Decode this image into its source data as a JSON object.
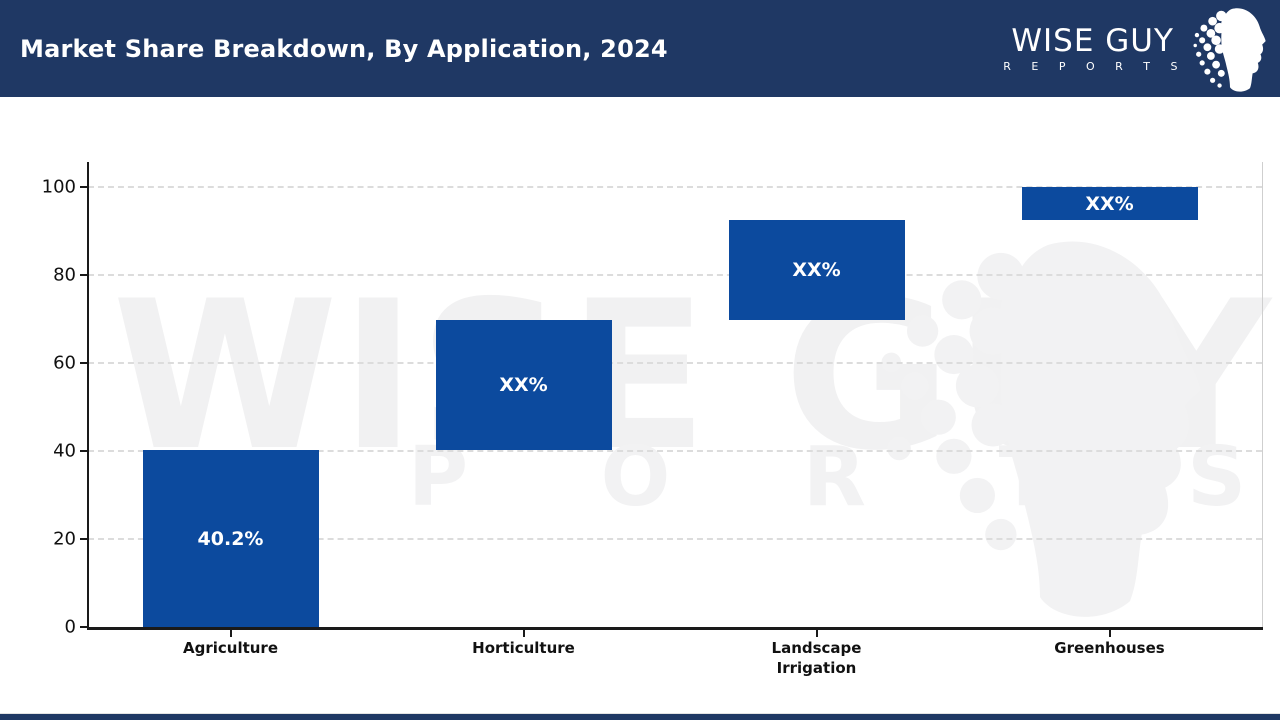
{
  "header": {
    "title": "Market Share Breakdown, By Application, 2024",
    "bg_color": "#1f3864",
    "logo": {
      "line1": "WISE GUY",
      "line2": "R E P O R T S",
      "icon": "wiseguy-face-icon"
    }
  },
  "chart_data": {
    "type": "bar",
    "subtype": "waterfall",
    "title": "Market Share Breakdown, By Application, 2024",
    "xlabel": "",
    "ylabel": "",
    "categories": [
      "Agriculture",
      "Horticulture",
      "Landscape Irrigation",
      "Greenhouses"
    ],
    "segments": [
      {
        "category": "Agriculture",
        "start": 0,
        "end": 40.2,
        "label": "40.2%"
      },
      {
        "category": "Horticulture",
        "start": 40.2,
        "end": 69.8,
        "label": "XX%"
      },
      {
        "category": "Landscape Irrigation",
        "start": 69.8,
        "end": 92.5,
        "label": "XX%"
      },
      {
        "category": "Greenhouses",
        "start": 92.5,
        "end": 100,
        "label": "XX%"
      }
    ],
    "yticks": [
      0,
      20,
      40,
      60,
      80,
      100
    ],
    "ylim": [
      0,
      106
    ],
    "grid": "horizontal-dashed",
    "legend": null,
    "bar_color": "#0c4a9e",
    "bar_label_color": "#ffffff",
    "axis_color": "#1a1a1a",
    "gridline_color": "#dcdcdc"
  },
  "watermark": {
    "line1": "WISE GUY",
    "line2": "P O R T S",
    "icon": "watermark-face"
  },
  "footer": {
    "bg_color": "#1f3864"
  }
}
